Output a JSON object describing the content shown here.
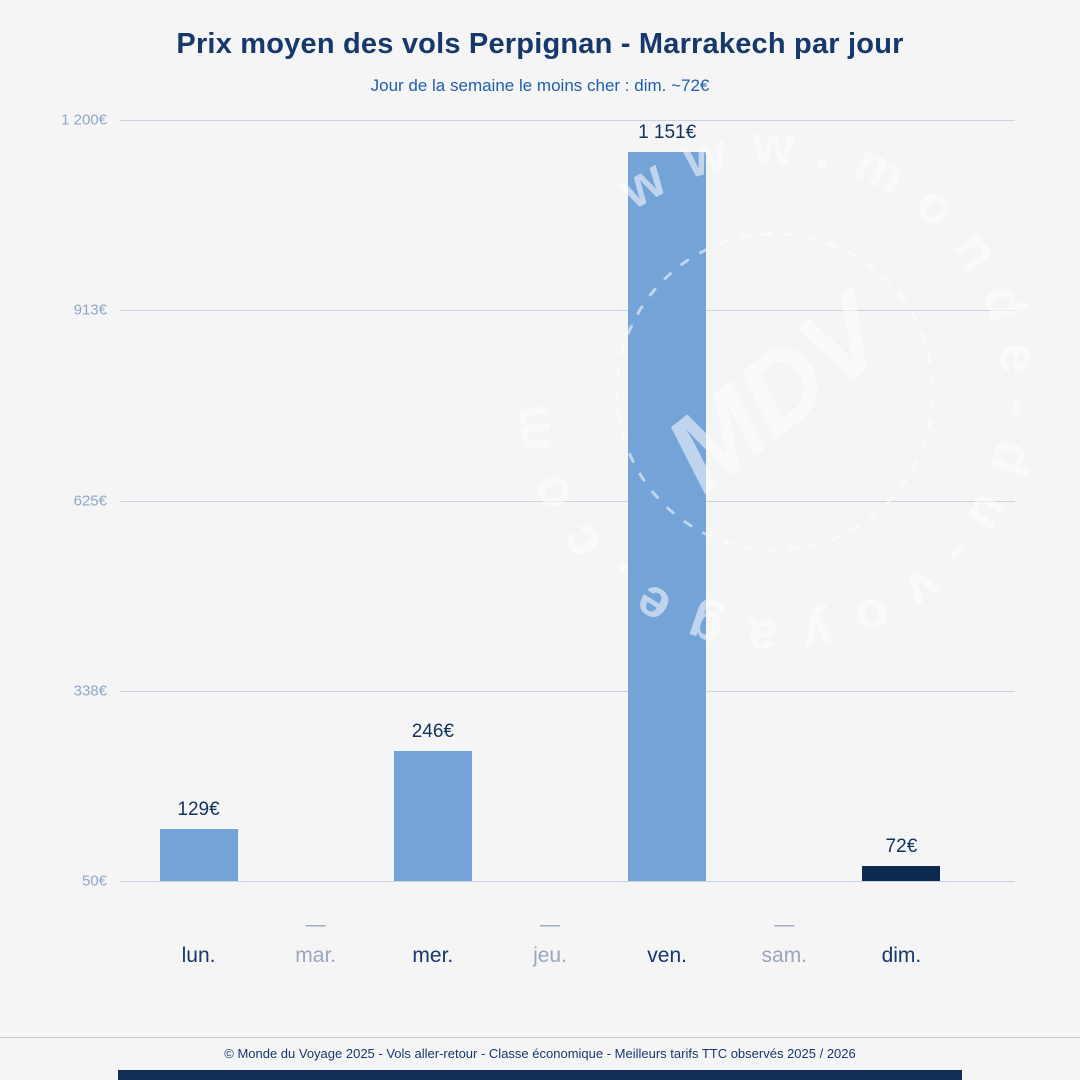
{
  "title": "Prix moyen des vols Perpignan - Marrakech par jour",
  "subtitle": "Jour de la semaine le moins cher : dim. ~72€",
  "chart_data": {
    "type": "bar",
    "categories": [
      "lun.",
      "mar.",
      "mer.",
      "jeu.",
      "ven.",
      "sam.",
      "dim."
    ],
    "values": [
      129,
      null,
      246,
      null,
      1151,
      null,
      72
    ],
    "value_labels": [
      "129€",
      "",
      "246€",
      "",
      "1 151€",
      "",
      "72€"
    ],
    "missing_marker": "—",
    "title": "Prix moyen des vols Perpignan - Marrakech par jour",
    "xlabel": "",
    "ylabel": "",
    "ylim": [
      50,
      1200
    ],
    "y_ticks": [
      "1 200€",
      "913€",
      "625€",
      "338€",
      "50€"
    ],
    "y_tick_values": [
      1200,
      913,
      625,
      338,
      50
    ],
    "grid": true,
    "legend": false,
    "bar_colors": [
      "#74a3d8",
      null,
      "#74a3d8",
      null,
      "#74a3d8",
      null,
      "#0e2950"
    ],
    "highlight_index": 6
  },
  "watermark": {
    "ring_text": "www.monde-du-voyage.com",
    "center_text": "MDV"
  },
  "footer": {
    "text": "© Monde du Voyage 2025 - Vols aller-retour - Classe économique - Meilleurs tarifs TTC observés 2025 / 2026"
  },
  "colors": {
    "background": "#f5f5f6",
    "title": "#17386a",
    "subtitle": "#1f5fa8",
    "bar": "#74a3d8",
    "bar_highlight": "#0e2950",
    "axis_label": "#90a7c8",
    "gridline": "#c9d2e0",
    "day_active": "#17386a",
    "day_inactive": "#9aa6ba"
  }
}
